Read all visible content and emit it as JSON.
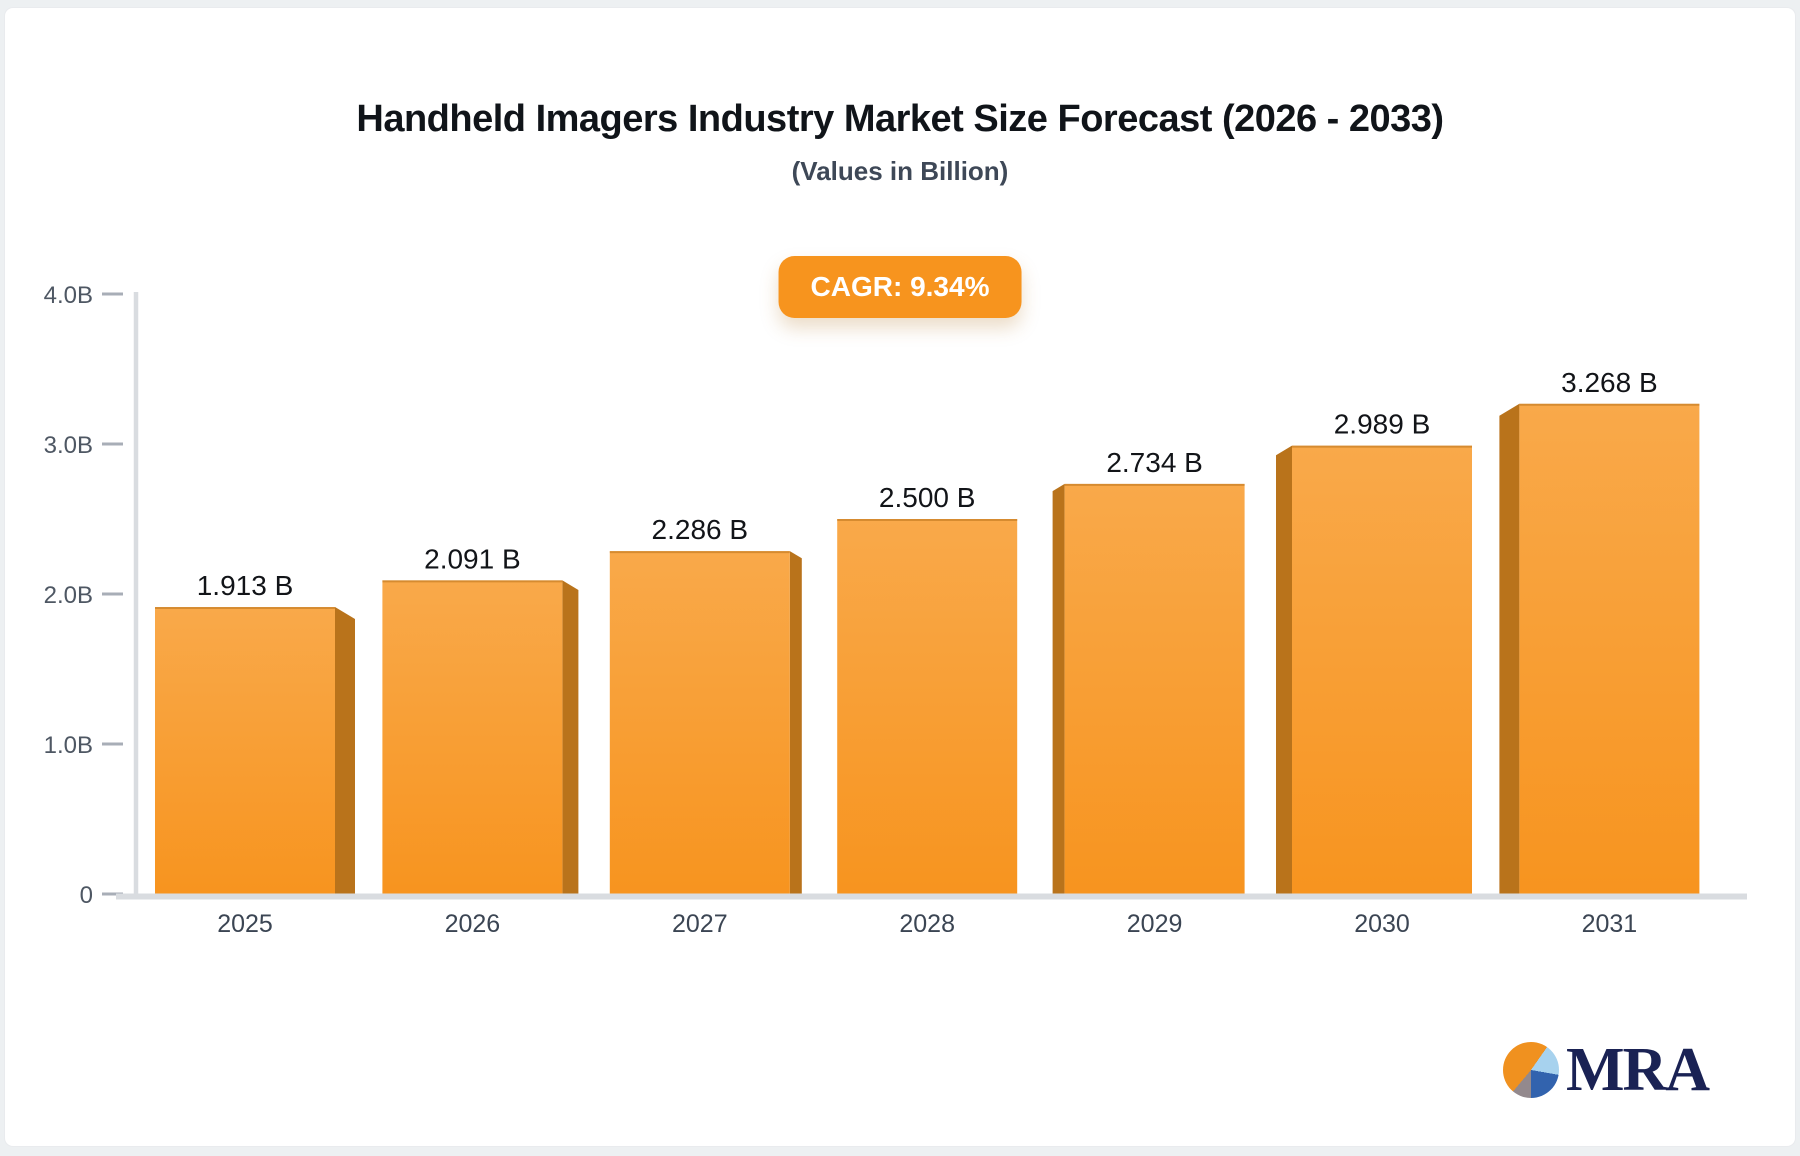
{
  "title": "Handheld Imagers Industry Market Size Forecast (2026 - 2033)",
  "subtitle": "(Values in Billion)",
  "badge": {
    "label": "CAGR: 9.34%",
    "color": "#F7941E"
  },
  "chart_data": {
    "type": "bar",
    "title": "Handheld Imagers Industry Market Size Forecast (2026 - 2033)",
    "subtitle": "(Values in Billion)",
    "cagr": "9.34%",
    "categories": [
      "2025",
      "2026",
      "2027",
      "2028",
      "2029",
      "2030",
      "2031"
    ],
    "values": [
      1.913,
      2.091,
      2.286,
      2.5,
      2.734,
      2.989,
      3.268
    ],
    "value_labels": [
      "1.913 B",
      "2.091 B",
      "2.286 B",
      "2.500 B",
      "2.734 B",
      "2.989 B",
      "3.268 B"
    ],
    "xlabel": "",
    "ylabel": "",
    "ylim": [
      0,
      4
    ],
    "yticks": [
      {
        "label": "4.0B",
        "value": 4
      },
      {
        "label": "3.0B",
        "value": 3
      },
      {
        "label": "2.0B",
        "value": 2
      },
      {
        "label": "1.0B",
        "value": 1
      },
      {
        "label": "0",
        "value": 0
      }
    ],
    "grid": false,
    "legend": null,
    "bar_style": "3d",
    "colors": {
      "bar_top": "#F9A94A",
      "bar_bottom": "#F7941F",
      "bar_side": "#B9731B",
      "bar_top_edge": "rgba(186,115,27,0.55)",
      "axis_line": "#D9DCE0",
      "tick_dash": "#A8AEB7",
      "tick_text": "#4E5763",
      "category_text": "#3B4553",
      "value_text": "#121418"
    }
  },
  "logo": {
    "text": "MRA",
    "pie_orange": "#F0911F",
    "pie_light_blue": "#A7D2EE",
    "pie_blue": "#3263AE",
    "pie_gray": "#93898D"
  }
}
